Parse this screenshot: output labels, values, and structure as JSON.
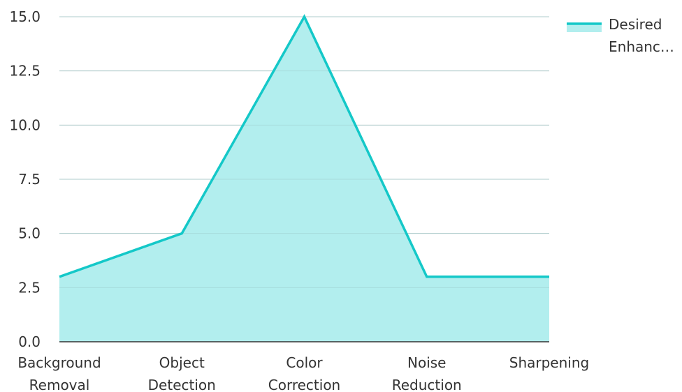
{
  "chart_data": {
    "type": "area",
    "categories": [
      [
        "Background",
        "Removal"
      ],
      [
        "Object",
        "Detection"
      ],
      [
        "Color",
        "Correction"
      ],
      [
        "Noise",
        "Reduction"
      ],
      [
        "Sharpening"
      ]
    ],
    "series": [
      {
        "name": [
          "Desired",
          "Enhanc…"
        ],
        "values": [
          3,
          5,
          15,
          3,
          3
        ],
        "line_color": "#14c8c8",
        "fill_color": "#b2eeee"
      }
    ],
    "y_ticks": [
      "0.0",
      "2.5",
      "5.0",
      "7.5",
      "10.0",
      "12.5",
      "15.0"
    ],
    "ylim": [
      0,
      15
    ],
    "grid": true,
    "legend": "top-right",
    "title": "",
    "xlabel": "",
    "ylabel": ""
  }
}
